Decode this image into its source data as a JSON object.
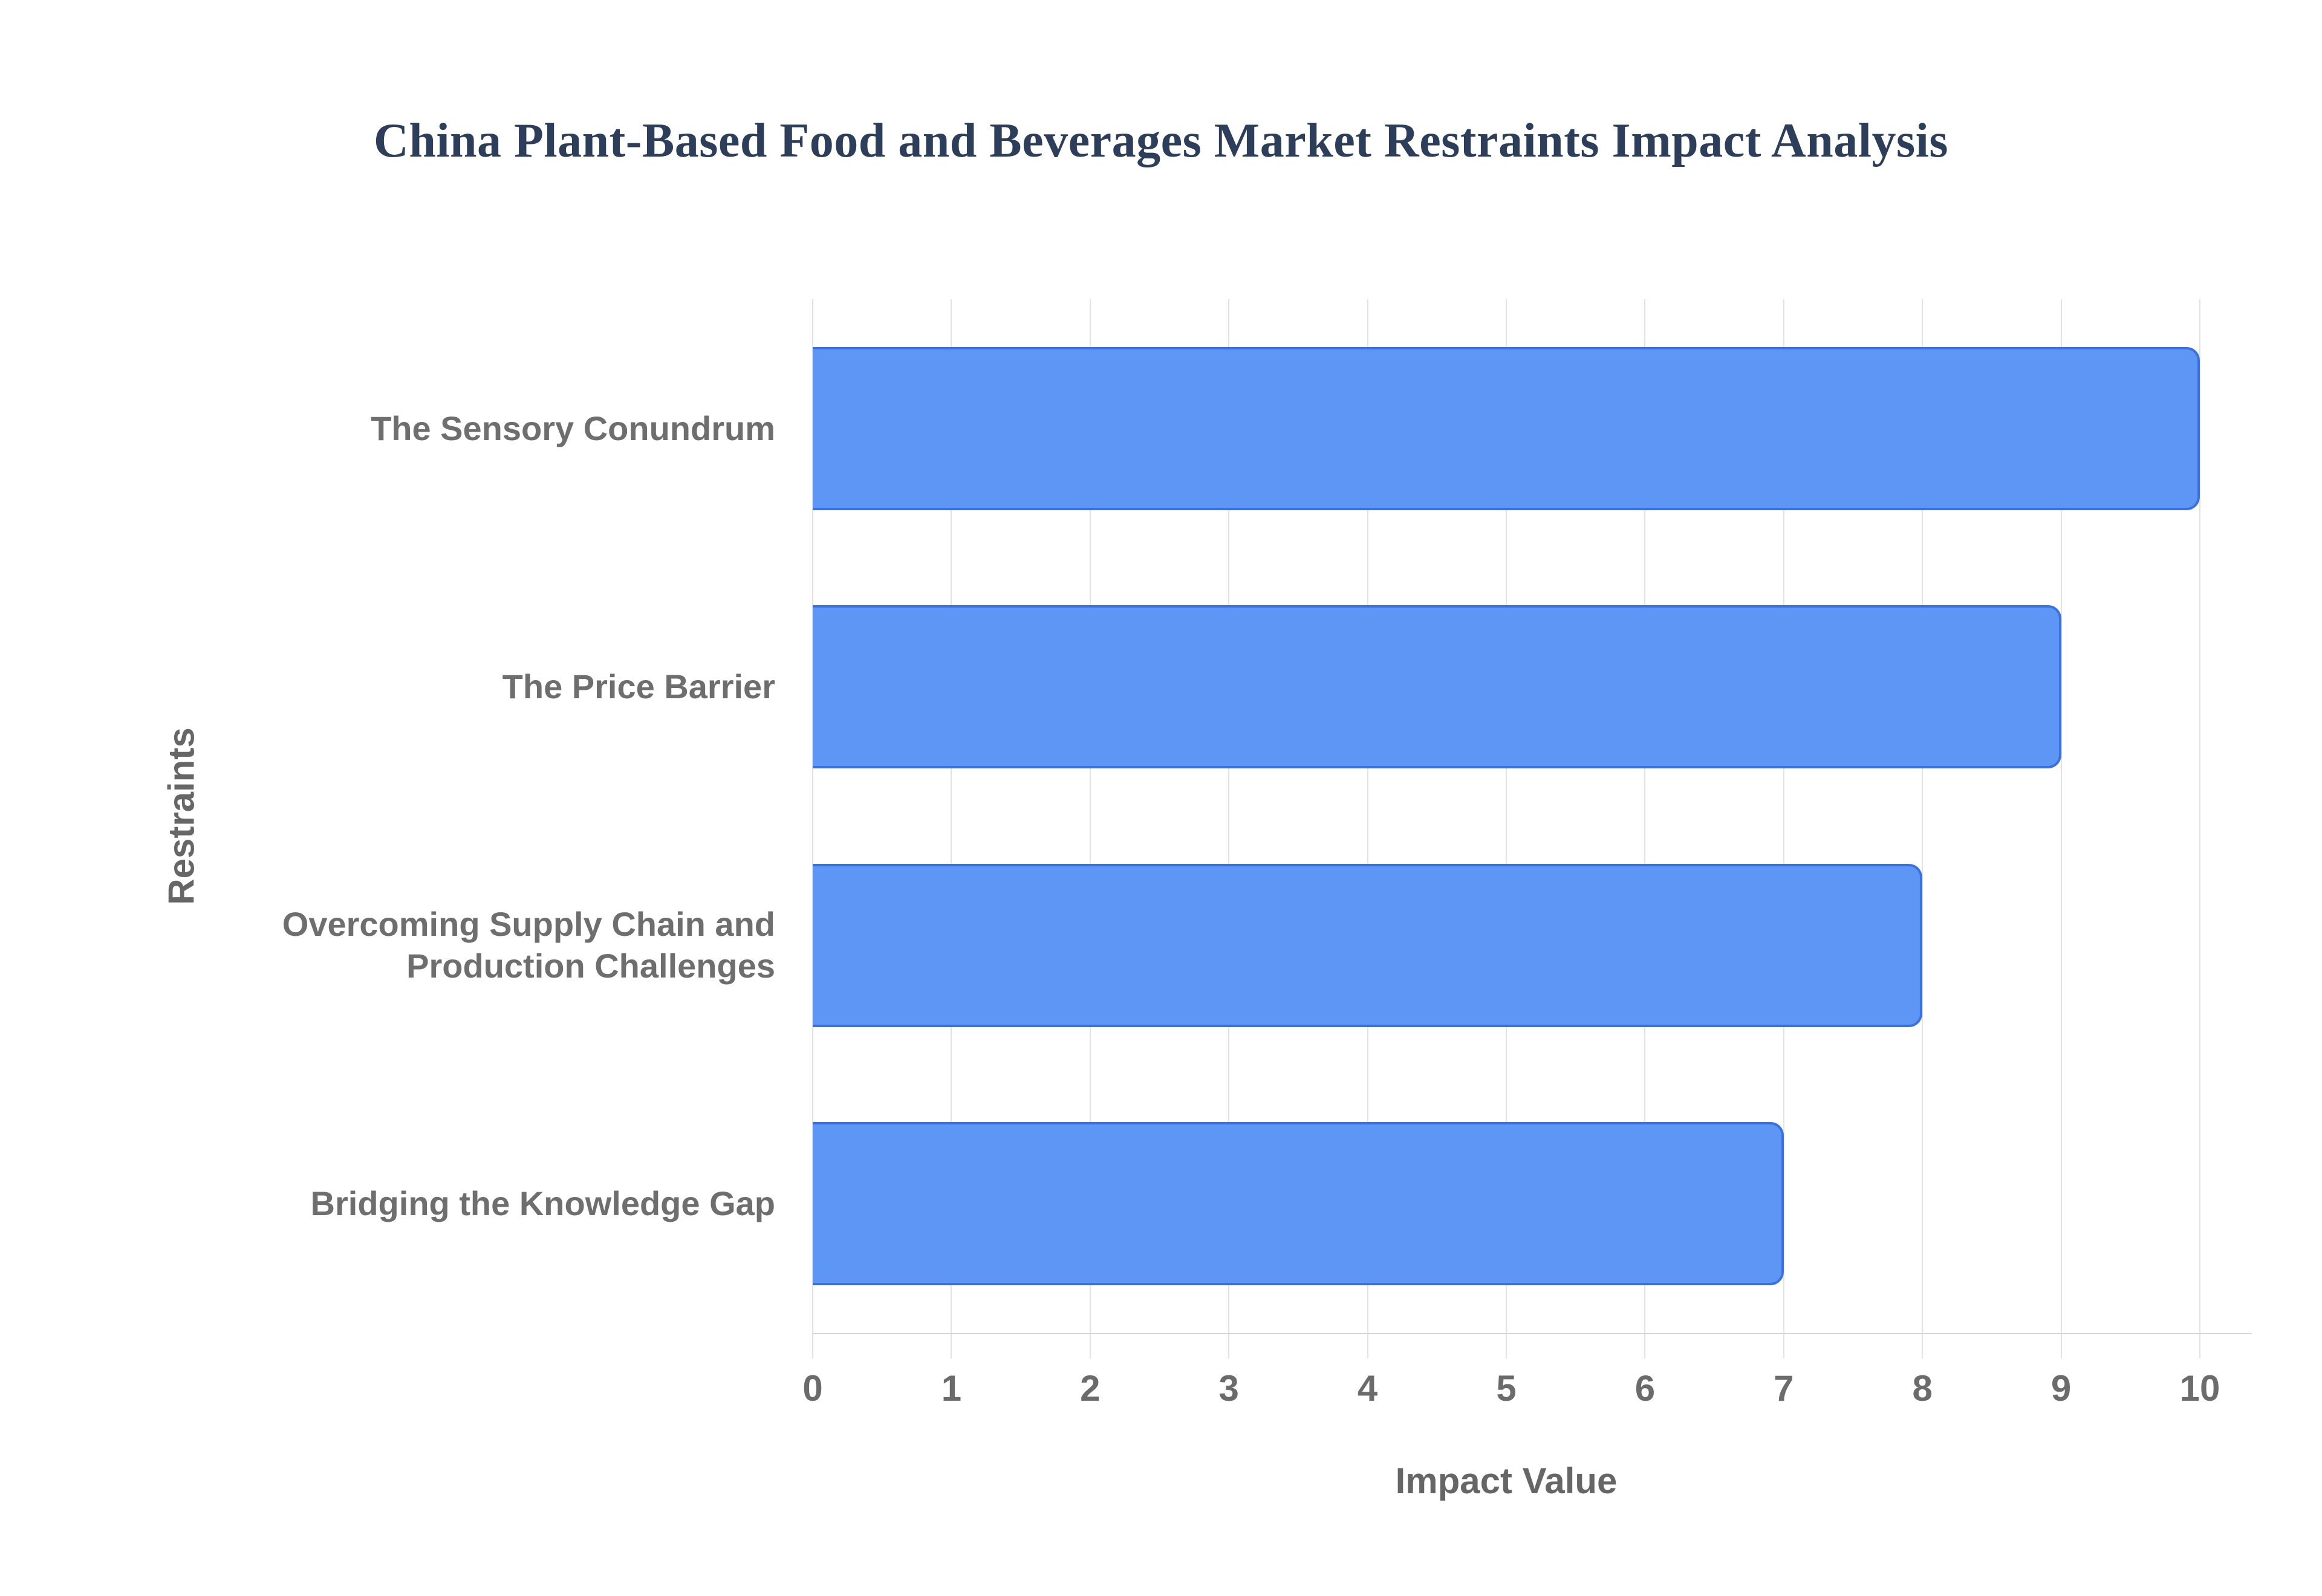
{
  "page": {
    "background_color": "#ffffff"
  },
  "title": {
    "text": "China Plant-Based Food and Beverages Market Restraints Impact Analysis",
    "color": "#2c3e5a"
  },
  "chart_data": {
    "type": "bar",
    "orientation": "horizontal",
    "title": "China Plant-Based Food and Beverages Market Restraints Impact Analysis",
    "categories": [
      "The Sensory Conundrum",
      "The Price Barrier",
      "Overcoming Supply Chain and Production Challenges",
      "Bridging the Knowledge Gap"
    ],
    "values": [
      10,
      9,
      8,
      7
    ],
    "xlabel": "Impact Value",
    "ylabel": "Restraints",
    "xlim": [
      0,
      10
    ],
    "xticks": [
      0,
      1,
      2,
      3,
      4,
      5,
      6,
      7,
      8,
      9,
      10
    ],
    "grid": "vertical-only",
    "legend_visible": false,
    "bar_fill_color": "#5d96f4",
    "bar_border_color": "#3a70e0",
    "gridline_color": "#e2e2e2",
    "axis_line_color": "#d6d6d6",
    "tick_label_color": "#6b6b6b",
    "category_label_color": "#6e6e6e",
    "axis_title_color": "#666666"
  }
}
